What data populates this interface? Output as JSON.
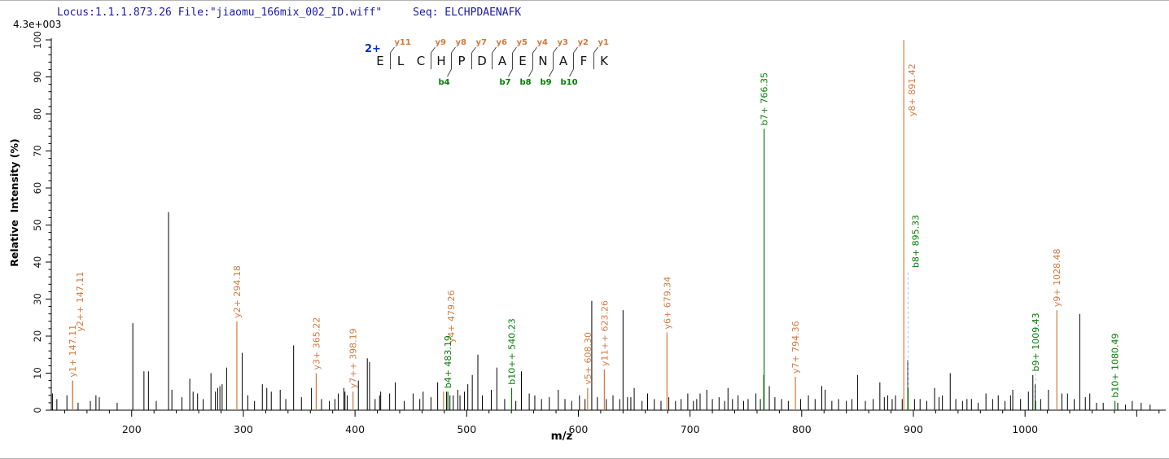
{
  "header": {
    "locus_file": "Locus:1.1.1.873.26 File:\"jiaomu_166mix_002_ID.wiff\"",
    "seq_label": "Seq: ELCHPDAENAFK"
  },
  "colors": {
    "y_ion": "#d2793e",
    "b_ion": "#007d00",
    "peak": "#000000",
    "header_text": "#1a1aad",
    "charge": "#0033cc",
    "dash": "#9bc7d4",
    "axis": "#000000"
  },
  "peptide": {
    "charge": "2+",
    "residues": [
      "E",
      "L",
      "C",
      "H",
      "P",
      "D",
      "A",
      "E",
      "N",
      "A",
      "F",
      "K"
    ],
    "y_ions": [
      {
        "label": "y11",
        "gap": 0
      },
      {
        "label": "y9",
        "gap": 2
      },
      {
        "label": "y8",
        "gap": 3
      },
      {
        "label": "y7",
        "gap": 4
      },
      {
        "label": "y6",
        "gap": 5
      },
      {
        "label": "y5",
        "gap": 6
      },
      {
        "label": "y4",
        "gap": 7
      },
      {
        "label": "y3",
        "gap": 8
      },
      {
        "label": "y2",
        "gap": 9
      },
      {
        "label": "y1",
        "gap": 10
      }
    ],
    "b_ions": [
      {
        "label": "b4",
        "gap": 3
      },
      {
        "label": "b7",
        "gap": 6
      },
      {
        "label": "b8",
        "gap": 7
      },
      {
        "label": "b9",
        "gap": 8
      },
      {
        "label": "b10",
        "gap": 9
      }
    ]
  },
  "chart_data": {
    "type": "bar",
    "chart_kind": "ms2-fragmentation-spectrum",
    "title": "Locus:1.1.1.873.26 File:\"jiaomu_166mix_002_ID.wiff\"  Seq: ELCHPDAENAFK",
    "xlabel": "m/z",
    "ylabel": "Relative  Intensity (%)",
    "y_axis_top_label": "4.3e+003",
    "xlim": [
      128,
      1126
    ],
    "ylim": [
      0,
      100
    ],
    "x_tick_labels": [
      200,
      300,
      400,
      500,
      600,
      700,
      800,
      900,
      1000
    ],
    "x_major_step": 100,
    "x_minor_step": 20,
    "y_major_step": 10,
    "y_minor_step": 2,
    "grid": false,
    "legend": false,
    "annotated_peaks": [
      {
        "label": "y1+ 147.11",
        "ion": "y",
        "mz": 147.11,
        "intensity": 8
      },
      {
        "label": "y2++ 147.11",
        "ion": "y",
        "mz": 147.11,
        "intensity": 8
      },
      {
        "label": "y2+ 294.18",
        "ion": "y",
        "mz": 294.18,
        "intensity": 24
      },
      {
        "label": "y3+ 365.22",
        "ion": "y",
        "mz": 365.22,
        "intensity": 10
      },
      {
        "label": "y7++ 398.19",
        "ion": "y",
        "mz": 398.19,
        "intensity": 5
      },
      {
        "label": "b4+ 483.19",
        "ion": "b",
        "mz": 483.19,
        "intensity": 5
      },
      {
        "label": "y4+ 479.26",
        "ion": "y",
        "mz": 479.26,
        "intensity": 5
      },
      {
        "label": "b10++ 540.23",
        "ion": "b",
        "mz": 540.23,
        "intensity": 6
      },
      {
        "label": "y5+ 608.30",
        "ion": "y",
        "mz": 608.3,
        "intensity": 6
      },
      {
        "label": "y11++ 623.26",
        "ion": "y",
        "mz": 623.26,
        "intensity": 11
      },
      {
        "label": "y6+ 679.34",
        "ion": "y",
        "mz": 679.34,
        "intensity": 21
      },
      {
        "label": "b7+ 766.35",
        "ion": "b",
        "mz": 766.35,
        "intensity": 76
      },
      {
        "label": "y7+ 794.36",
        "ion": "y",
        "mz": 794.36,
        "intensity": 9
      },
      {
        "label": "y8+ 891.42",
        "ion": "y",
        "mz": 891.42,
        "intensity": 100,
        "label_side": true
      },
      {
        "label": "b8+ 895.33",
        "ion": "b",
        "mz": 895.33,
        "intensity": 6,
        "dashed_to_pct": 38
      },
      {
        "label": "b9+ 1009.43",
        "ion": "b",
        "mz": 1009.43,
        "intensity": 2.5,
        "dashed_to_pct": 10
      },
      {
        "label": "y9+ 1028.48",
        "ion": "y",
        "mz": 1028.48,
        "intensity": 27
      },
      {
        "label": "b10+ 1080.49",
        "ion": "b",
        "mz": 1080.49,
        "intensity": 2.5
      }
    ],
    "peaks": [
      [
        129,
        4.5
      ],
      [
        133,
        3
      ],
      [
        142,
        4
      ],
      [
        152,
        2
      ],
      [
        163,
        2.5
      ],
      [
        168,
        4
      ],
      [
        171,
        3.5
      ],
      [
        187,
        2
      ],
      [
        201,
        23.5
      ],
      [
        211,
        10.5
      ],
      [
        215,
        10.5
      ],
      [
        222,
        2.5
      ],
      [
        233,
        53.5
      ],
      [
        236,
        5.5
      ],
      [
        245,
        3.5
      ],
      [
        252,
        8.5
      ],
      [
        255,
        5
      ],
      [
        259,
        4.5
      ],
      [
        264,
        3
      ],
      [
        271,
        10
      ],
      [
        275,
        5
      ],
      [
        277,
        6
      ],
      [
        279,
        6.5
      ],
      [
        281,
        7
      ],
      [
        285,
        11.5
      ],
      [
        299,
        15.5
      ],
      [
        304,
        4
      ],
      [
        310,
        2.5
      ],
      [
        317,
        7
      ],
      [
        321,
        6
      ],
      [
        325,
        5
      ],
      [
        333,
        5.5
      ],
      [
        338,
        3
      ],
      [
        345,
        17.5
      ],
      [
        352,
        3.5
      ],
      [
        361,
        6
      ],
      [
        370,
        3
      ],
      [
        377,
        2.5
      ],
      [
        382,
        3
      ],
      [
        385,
        4.5
      ],
      [
        390,
        6
      ],
      [
        391,
        5
      ],
      [
        393,
        4
      ],
      [
        403,
        8
      ],
      [
        411,
        14
      ],
      [
        413,
        13
      ],
      [
        418,
        3
      ],
      [
        422,
        4
      ],
      [
        423,
        5
      ],
      [
        431,
        4.5
      ],
      [
        436,
        7.5
      ],
      [
        444,
        2.5
      ],
      [
        452,
        4.5
      ],
      [
        458,
        3
      ],
      [
        461,
        5
      ],
      [
        468,
        3.5
      ],
      [
        474,
        7.5
      ],
      [
        482,
        5
      ],
      [
        485,
        4
      ],
      [
        488,
        4
      ],
      [
        492,
        5.5
      ],
      [
        494,
        4
      ],
      [
        498,
        5
      ],
      [
        501,
        7
      ],
      [
        505,
        9.5
      ],
      [
        510,
        15
      ],
      [
        514,
        4
      ],
      [
        522,
        5.5
      ],
      [
        527,
        11.5
      ],
      [
        534,
        3
      ],
      [
        544,
        2.5
      ],
      [
        549,
        10.5
      ],
      [
        556,
        4.5
      ],
      [
        561,
        4
      ],
      [
        567,
        3
      ],
      [
        574,
        3.5
      ],
      [
        582,
        5.5
      ],
      [
        588,
        3
      ],
      [
        594,
        2.5
      ],
      [
        601,
        4
      ],
      [
        606,
        3
      ],
      [
        612,
        29.5
      ],
      [
        617,
        3.5
      ],
      [
        625,
        3
      ],
      [
        631,
        4
      ],
      [
        637,
        3
      ],
      [
        640,
        27
      ],
      [
        644,
        3.5
      ],
      [
        647,
        3.5
      ],
      [
        650,
        6
      ],
      [
        657,
        2.5
      ],
      [
        662,
        4.5
      ],
      [
        668,
        3
      ],
      [
        674,
        2.5
      ],
      [
        681,
        3.5
      ],
      [
        687,
        2.5
      ],
      [
        692,
        3
      ],
      [
        698,
        4.5
      ],
      [
        703,
        2.5
      ],
      [
        706,
        3
      ],
      [
        709,
        4.5
      ],
      [
        715,
        5.5
      ],
      [
        720,
        3
      ],
      [
        726,
        3.5
      ],
      [
        731,
        2.5
      ],
      [
        734,
        6
      ],
      [
        738,
        3
      ],
      [
        743,
        4
      ],
      [
        748,
        2.5
      ],
      [
        752,
        3
      ],
      [
        759,
        4.5
      ],
      [
        763,
        3
      ],
      [
        766,
        9.5
      ],
      [
        771,
        6.5
      ],
      [
        776,
        3.5
      ],
      [
        782,
        3
      ],
      [
        788,
        2.5
      ],
      [
        799,
        3
      ],
      [
        806,
        4
      ],
      [
        812,
        3
      ],
      [
        818,
        6.5
      ],
      [
        821,
        5.5
      ],
      [
        827,
        2.5
      ],
      [
        833,
        3
      ],
      [
        840,
        2.5
      ],
      [
        845,
        3
      ],
      [
        850,
        9.5
      ],
      [
        857,
        2.5
      ],
      [
        864,
        3
      ],
      [
        870,
        7.5
      ],
      [
        874,
        3.5
      ],
      [
        877,
        4
      ],
      [
        881,
        3
      ],
      [
        884,
        4
      ],
      [
        890,
        3
      ],
      [
        895,
        13.5
      ],
      [
        901,
        3
      ],
      [
        906,
        3
      ],
      [
        912,
        2.5
      ],
      [
        919,
        6
      ],
      [
        923,
        3.5
      ],
      [
        926,
        4
      ],
      [
        933,
        10
      ],
      [
        938,
        3
      ],
      [
        944,
        2.5
      ],
      [
        948,
        3
      ],
      [
        952,
        3
      ],
      [
        958,
        2
      ],
      [
        965,
        4.5
      ],
      [
        971,
        3
      ],
      [
        976,
        4
      ],
      [
        982,
        2.5
      ],
      [
        987,
        4
      ],
      [
        989,
        5.5
      ],
      [
        996,
        3
      ],
      [
        1003,
        5
      ],
      [
        1007,
        9.5
      ],
      [
        1009,
        7
      ],
      [
        1014,
        3
      ],
      [
        1021,
        5.5
      ],
      [
        1033,
        4.5
      ],
      [
        1038,
        4.5
      ],
      [
        1044,
        3
      ],
      [
        1049,
        26
      ],
      [
        1054,
        3.5
      ],
      [
        1058,
        4.5
      ],
      [
        1064,
        2
      ],
      [
        1070,
        2
      ],
      [
        1083,
        2
      ],
      [
        1090,
        1.5
      ],
      [
        1096,
        2.5
      ],
      [
        1104,
        2
      ],
      [
        1112,
        1.5
      ]
    ]
  }
}
